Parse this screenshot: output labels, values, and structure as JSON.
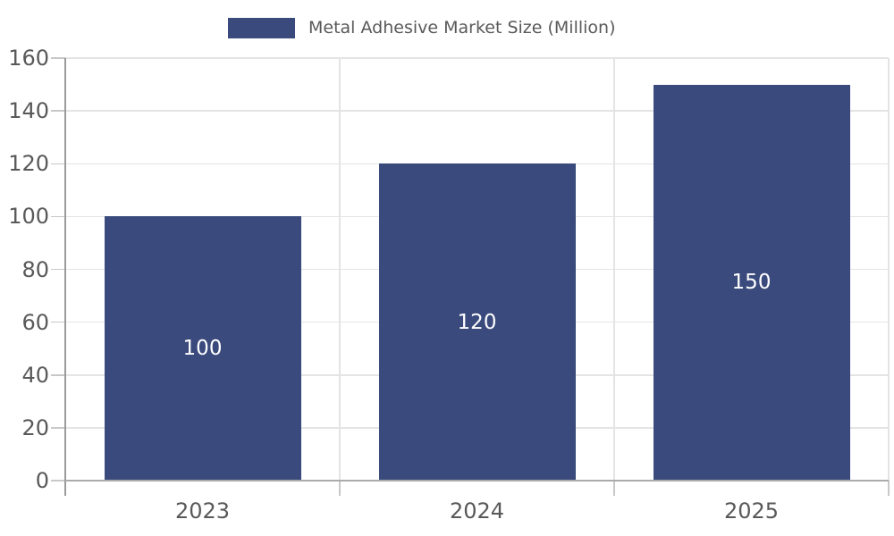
{
  "chart_data": {
    "type": "bar",
    "title": "Metal Adhesive Market Size (Million)",
    "series_name": "Metal Adhesive Market Size (Million)",
    "categories": [
      "2023",
      "2024",
      "2025"
    ],
    "values": [
      100,
      120,
      150
    ],
    "data_labels": [
      "100",
      "120",
      "150"
    ],
    "xlabel": "",
    "ylabel": "",
    "ylim": [
      0,
      160
    ],
    "ytick_interval": 20,
    "ytick_labels": [
      "0",
      "20",
      "40",
      "60",
      "80",
      "100",
      "120",
      "140",
      "160"
    ],
    "grid": true,
    "legend_position": "top-center",
    "bar_color": "#3A4A7C",
    "label_color": "#FFFFFF",
    "axis_text_color": "#595959",
    "grid_color": "#E4E4E4",
    "tick_color": "#C8C8C8",
    "y_axis_color": "#9B9B9B",
    "x_axis_color": "#ABABAB"
  }
}
